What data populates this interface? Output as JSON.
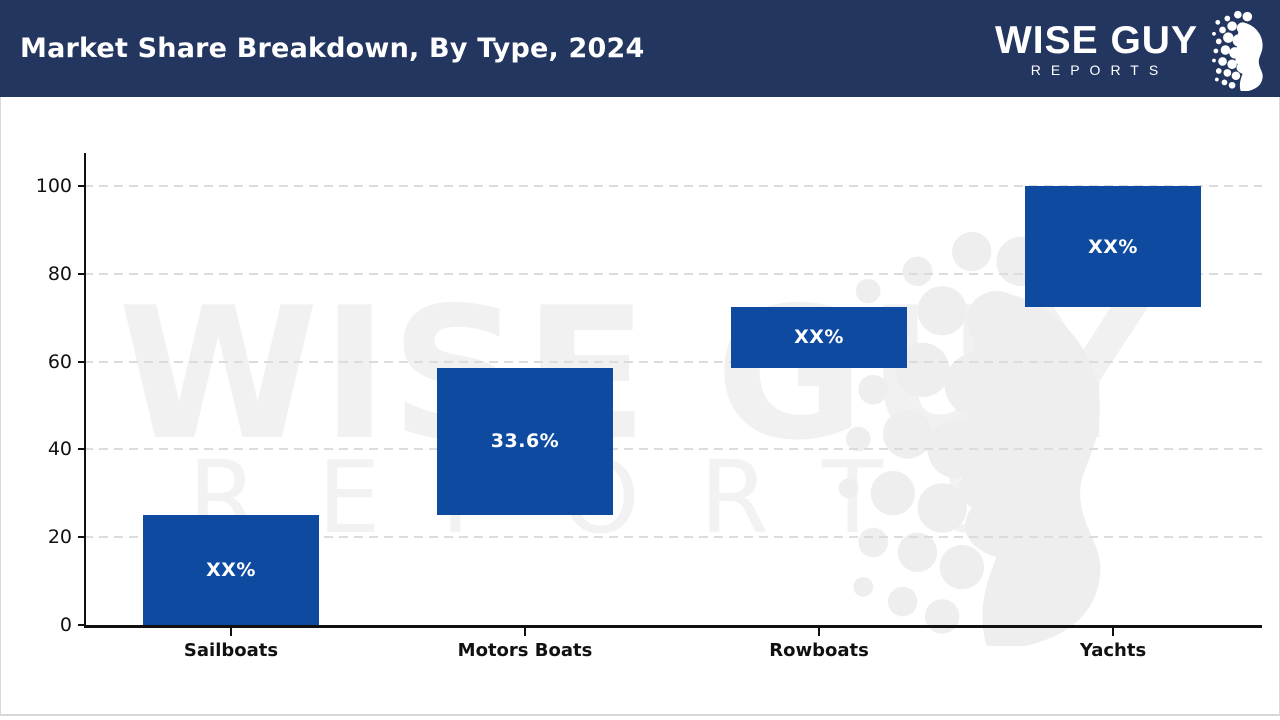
{
  "header": {
    "title": "Market Share Breakdown, By Type, 2024",
    "background_color": "#23365F",
    "logo": {
      "line1": "WISE GUY",
      "line2": "REPORTS"
    }
  },
  "watermark": {
    "line1": "WISE GUY",
    "line2": "REPORTS"
  },
  "chart_data": {
    "type": "bar",
    "subtype": "floating-waterfall",
    "title": "Market Share Breakdown, By Type, 2024",
    "categories": [
      "Sailboats",
      "Motors Boats",
      "Rowboats",
      "Yachts"
    ],
    "bars": [
      {
        "category": "Sailboats",
        "start": 0,
        "end": 25,
        "label": "XX%"
      },
      {
        "category": "Motors Boats",
        "start": 25,
        "end": 58.6,
        "label": "33.6%"
      },
      {
        "category": "Rowboats",
        "start": 58.6,
        "end": 72.4,
        "label": "XX%"
      },
      {
        "category": "Yachts",
        "start": 72.4,
        "end": 100,
        "label": "XX%"
      }
    ],
    "yticks": [
      0,
      20,
      40,
      60,
      80,
      100
    ],
    "ylim": [
      0,
      107
    ],
    "xlabel": "",
    "ylabel": "",
    "legend": "none",
    "grid": "horizontal-dashed",
    "bar_color": "#0D4AA0",
    "axis_color": "#111111",
    "gridline_color": "#dcdcdc",
    "bar_label_color": "#ffffff"
  }
}
